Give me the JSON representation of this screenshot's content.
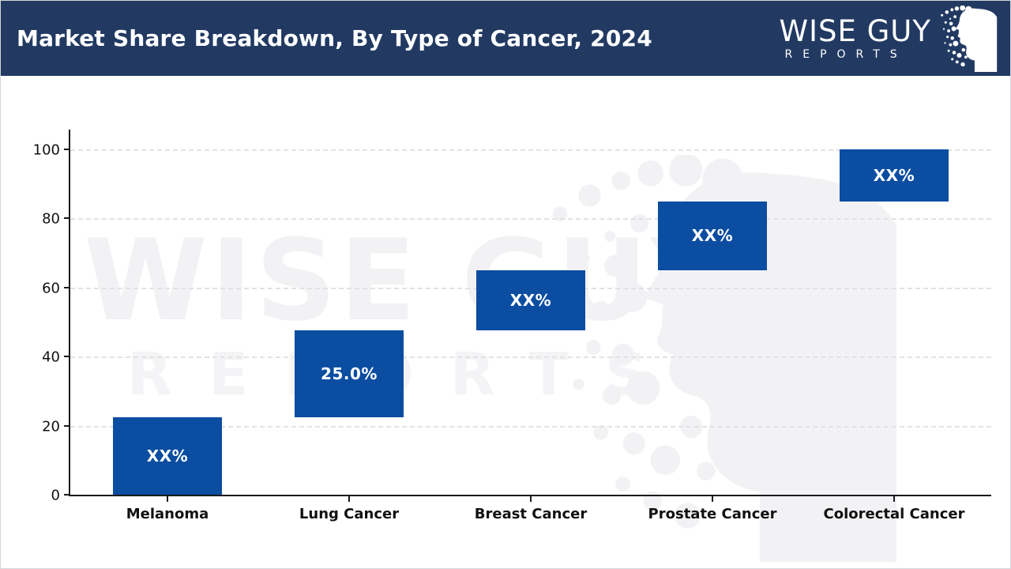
{
  "header": {
    "title": "Market Share Breakdown, By Type of Cancer, 2024",
    "logo": {
      "name": "WISE GUY",
      "sub": "REPORTS"
    }
  },
  "watermark": {
    "name": "WISE GUY",
    "sub": "REPORTS"
  },
  "chart_data": {
    "type": "bar",
    "variant": "waterfall",
    "title": "Market Share Breakdown, By Type of Cancer, 2024",
    "categories": [
      "Melanoma",
      "Lung Cancer",
      "Breast Cancer",
      "Prostate Cancer",
      "Colorectal Cancer"
    ],
    "segments": [
      {
        "category": "Melanoma",
        "start": 0,
        "end": 22.5,
        "label": "XX%"
      },
      {
        "category": "Lung Cancer",
        "start": 22.5,
        "end": 47.5,
        "label": "25.0%"
      },
      {
        "category": "Breast Cancer",
        "start": 47.5,
        "end": 65.0,
        "label": "XX%"
      },
      {
        "category": "Prostate Cancer",
        "start": 65.0,
        "end": 85.0,
        "label": "XX%"
      },
      {
        "category": "Colorectal Cancer",
        "start": 85.0,
        "end": 100.0,
        "label": "XX%"
      }
    ],
    "xlabel": "",
    "ylabel": "",
    "yticks": [
      0,
      20,
      40,
      60,
      80,
      100
    ],
    "ylim": [
      0,
      105
    ],
    "grid": true,
    "legend": false,
    "bar_color": "#0b4da1",
    "bar_label_color": "#ffffff",
    "axis_color": "#1a1a1a",
    "grid_color": "#e2e2e2"
  },
  "colors": {
    "header_bg": "#223a62",
    "watermark": "#f2f2f5",
    "frame_border": "#d4d6d9"
  }
}
